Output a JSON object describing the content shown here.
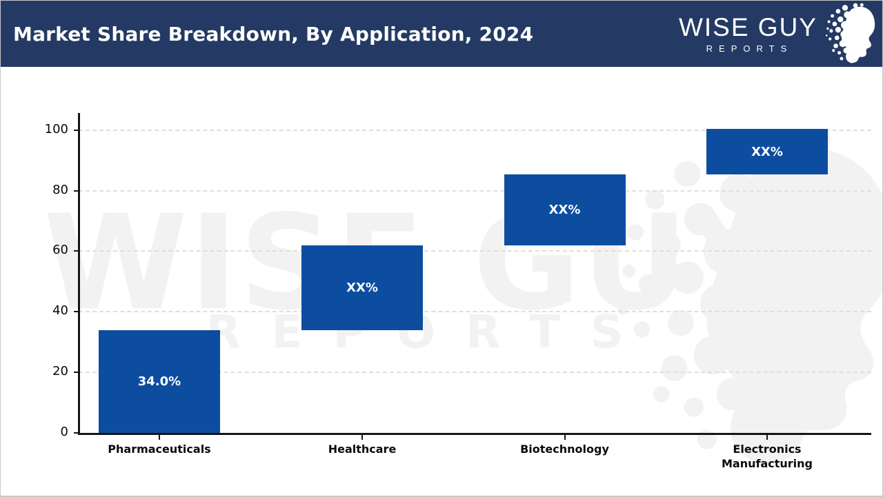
{
  "header": {
    "title": "Market Share Breakdown, By Application, 2024",
    "logo": {
      "wordmark": "WISE GUY",
      "subtext": "REPORTS"
    }
  },
  "watermark": {
    "wordmark": "WISE GUY",
    "subtext": "REPORTS"
  },
  "colors": {
    "header_bg": "#243a64",
    "bar": "#0d4da0",
    "bar_label": "#ffffff",
    "grid": "#dedede",
    "axis": "#151515",
    "watermark": "#f2f2f2"
  },
  "chart_data": {
    "type": "bar",
    "subtype": "floating-waterfall",
    "title": "Market Share Breakdown, By Application, 2024",
    "categories": [
      "Pharmaceuticals",
      "Healthcare",
      "Biotechnology",
      "Electronics\nManufacturing"
    ],
    "segments": [
      {
        "category": "Pharmaceuticals",
        "start": 0,
        "end": 34,
        "label": "34.0%"
      },
      {
        "category": "Healthcare",
        "start": 34,
        "end": 62,
        "label": "XX%"
      },
      {
        "category": "Biotechnology",
        "start": 62,
        "end": 85.3,
        "label": "XX%"
      },
      {
        "category": "Electronics Manufacturing",
        "start": 85.3,
        "end": 100.3,
        "label": "XX%"
      }
    ],
    "xlabel": "",
    "ylabel": "",
    "yticks": [
      0,
      20,
      40,
      60,
      80,
      100
    ],
    "ylim": [
      0,
      105.6
    ],
    "grid": "horizontal-dashed",
    "legend": "none"
  }
}
